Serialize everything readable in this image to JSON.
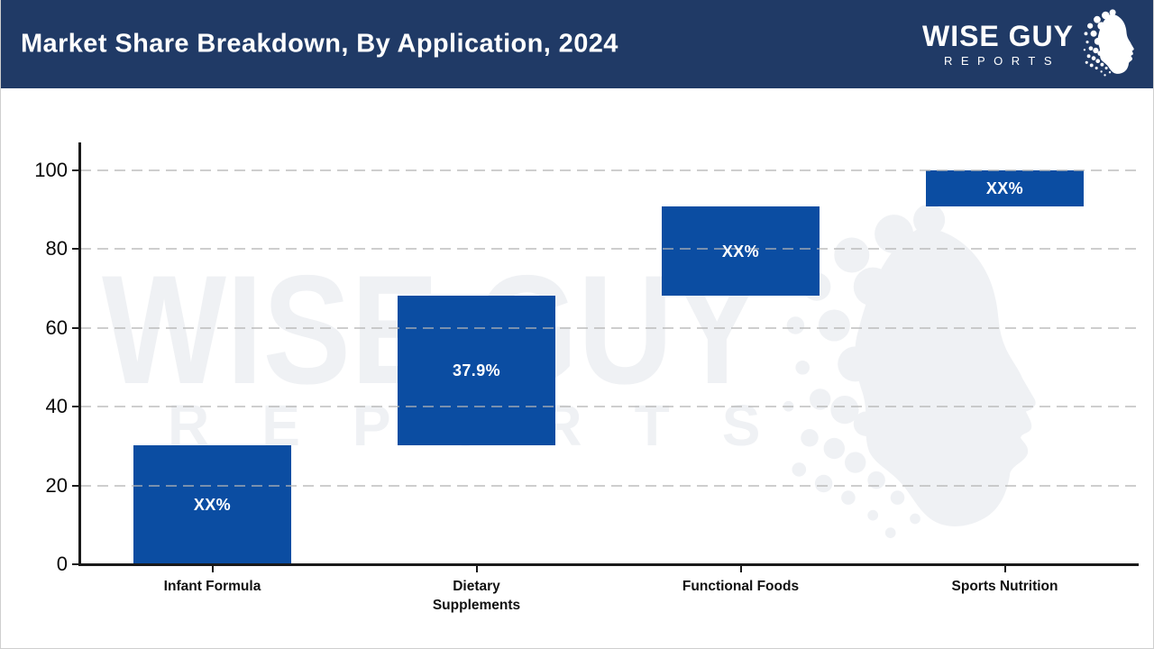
{
  "header": {
    "title": "Market Share Breakdown, By Application, 2024",
    "bg_color": "#203a66",
    "logo": {
      "line1": "WISE GUY",
      "line2": "REPORTS"
    }
  },
  "watermark": {
    "line1": "WISE GUY",
    "line2": "REPORTS"
  },
  "chart_data": {
    "type": "bar",
    "subtype": "floating-segment-waterfall",
    "title": "Market Share Breakdown, By Application, 2024",
    "xlabel": "",
    "ylabel": "",
    "ylim": [
      0,
      100
    ],
    "yticks": [
      0,
      20,
      40,
      60,
      80,
      100
    ],
    "grid": "dashed-horizontal",
    "legend": "none",
    "bar_color": "#0b4da2",
    "bar_label_color": "#ffffff",
    "categories": [
      "Infant Formula",
      "Dietary\nSupplements",
      "Functional Foods",
      "Sports Nutrition"
    ],
    "series": [
      {
        "name": "Market Share",
        "segments": [
          {
            "category": "Infant Formula",
            "start": 0,
            "end": 30.2,
            "label": "XX%"
          },
          {
            "category": "Dietary Supplements",
            "start": 30.2,
            "end": 68.1,
            "label": "37.9%"
          },
          {
            "category": "Functional Foods",
            "start": 68.1,
            "end": 90.9,
            "label": "XX%"
          },
          {
            "category": "Sports Nutrition",
            "start": 90.9,
            "end": 100,
            "label": "XX%"
          }
        ]
      }
    ]
  }
}
